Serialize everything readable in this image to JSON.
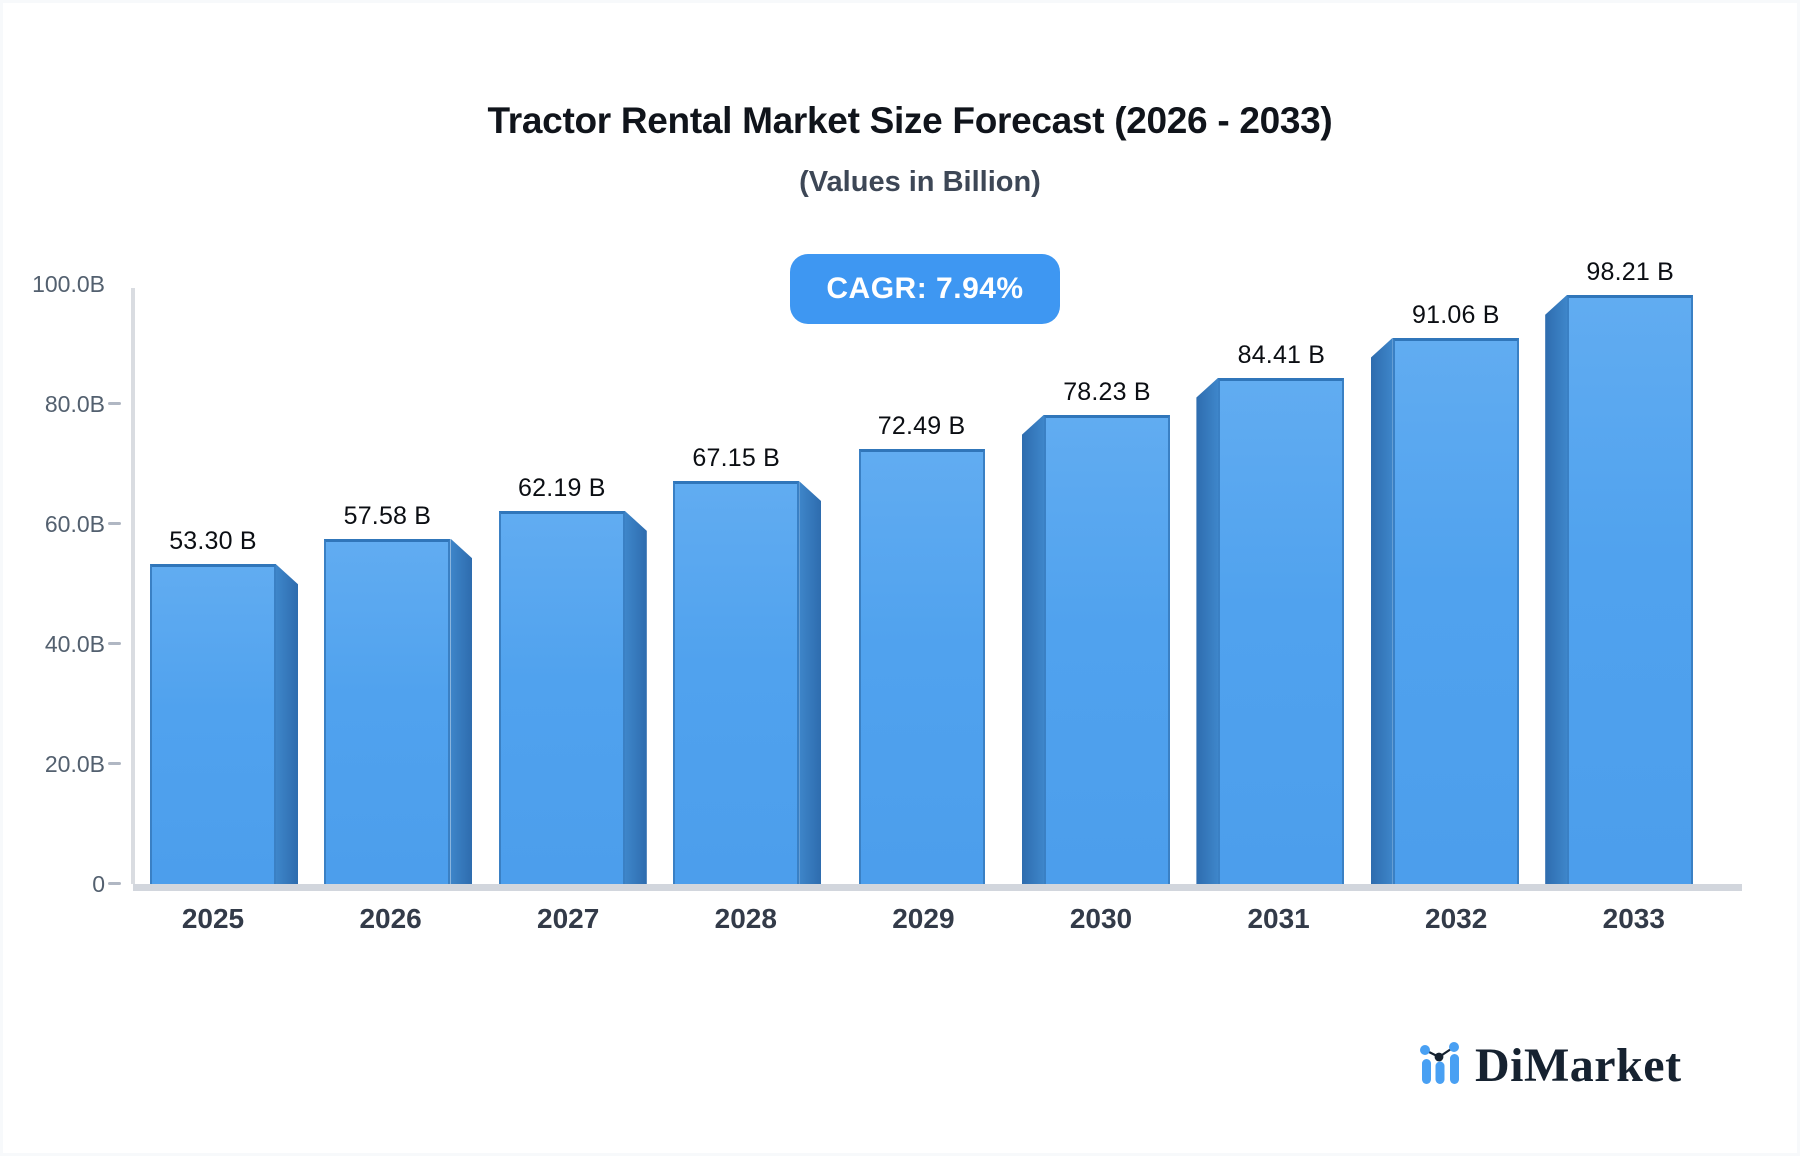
{
  "header": {
    "title": "Tractor Rental Market Size Forecast (2026 - 2033)",
    "subtitle": "(Values in Billion)",
    "cagr_badge": "CAGR: 7.94%"
  },
  "colors": {
    "accent_badge": "#3e97f2",
    "bar_face": "#4d9fec",
    "bar_side": "#3478bf",
    "floor": "#d2d6dd",
    "axis": "#d9dce1",
    "title_text": "#10141b",
    "subtitle_text": "#3d4756",
    "logo_navy": "#162230",
    "logo_blue": "#49a0f3"
  },
  "chart_data": {
    "type": "bar",
    "title": "Tractor Rental Market Size Forecast (2026 - 2033)",
    "subtitle": "(Values in Billion)",
    "cagr_percent": 7.94,
    "categories": [
      "2025",
      "2026",
      "2027",
      "2028",
      "2029",
      "2030",
      "2031",
      "2032",
      "2033"
    ],
    "values": [
      53.3,
      57.58,
      62.19,
      67.15,
      72.49,
      78.23,
      84.41,
      91.06,
      98.21
    ],
    "bar_labels": [
      "53.30 B",
      "57.58 B",
      "62.19 B",
      "67.15 B",
      "72.49 B",
      "78.23 B",
      "84.41 B",
      "91.06 B",
      "98.21 B"
    ],
    "unit": "Billion",
    "ylim": [
      0,
      100
    ],
    "ytick_values": [
      100,
      80,
      60,
      40,
      20,
      0
    ],
    "ytick_labels": [
      "100.0B",
      "80.0B",
      "60.0B",
      "40.0B",
      "20.0B",
      "0"
    ],
    "grid": false,
    "legend": false,
    "style": "3d-perspective-bars"
  },
  "branding": {
    "logo_text": "DiMarket",
    "logo_icon": "bar-chart-with-trendline-icon"
  }
}
